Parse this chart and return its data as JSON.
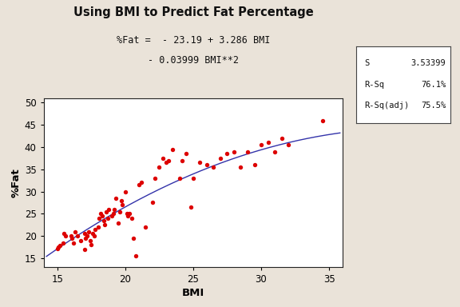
{
  "title": "Using BMI to Predict Fat Percentage",
  "subtitle1": "%Fat =  - 23.19 + 3.286 BMI",
  "subtitle2": "- 0.03999 BMI**2",
  "xlabel": "BMI",
  "ylabel": "%Fat",
  "xlim": [
    14,
    36
  ],
  "ylim": [
    13,
    51
  ],
  "xticks": [
    15,
    20,
    25,
    30,
    35
  ],
  "yticks": [
    15,
    20,
    25,
    30,
    35,
    40,
    45,
    50
  ],
  "bg_color": "#EAE3D9",
  "plot_bg_color": "#FFFFFF",
  "scatter_color": "#DD0000",
  "line_color": "#3333AA",
  "coef_a": -23.19,
  "coef_b": 3.286,
  "coef_c": -0.03999,
  "stat_s": "3.53399",
  "stat_rsq": "76.1%",
  "stat_rsqadj": "75.5%",
  "scatter_x": [
    15.0,
    15.1,
    15.2,
    15.4,
    15.5,
    15.6,
    16.0,
    16.1,
    16.2,
    16.3,
    16.5,
    16.7,
    17.0,
    17.0,
    17.1,
    17.2,
    17.3,
    17.4,
    17.5,
    17.6,
    17.7,
    17.8,
    18.0,
    18.1,
    18.2,
    18.3,
    18.4,
    18.5,
    18.6,
    18.7,
    18.8,
    19.0,
    19.1,
    19.2,
    19.3,
    19.5,
    19.6,
    19.7,
    19.8,
    20.0,
    20.1,
    20.2,
    20.3,
    20.5,
    20.6,
    20.8,
    21.0,
    21.2,
    21.5,
    22.0,
    22.2,
    22.5,
    22.8,
    23.0,
    23.2,
    23.5,
    24.0,
    24.2,
    24.5,
    24.8,
    25.0,
    25.5,
    26.0,
    26.5,
    27.0,
    27.5,
    28.0,
    28.5,
    29.0,
    29.5,
    30.0,
    30.5,
    31.0,
    31.5,
    32.0,
    34.5
  ],
  "scatter_y": [
    17.2,
    17.5,
    17.8,
    18.5,
    20.5,
    20.0,
    20.0,
    19.5,
    18.5,
    21.0,
    20.0,
    19.0,
    17.0,
    20.5,
    19.5,
    20.0,
    21.0,
    19.0,
    18.0,
    20.5,
    20.0,
    21.5,
    22.0,
    24.0,
    25.0,
    24.5,
    23.5,
    22.5,
    25.5,
    24.0,
    26.0,
    24.5,
    25.0,
    26.0,
    28.5,
    23.0,
    25.5,
    28.0,
    27.0,
    30.0,
    25.0,
    24.5,
    25.0,
    24.0,
    19.5,
    15.5,
    31.5,
    32.0,
    22.0,
    27.5,
    33.0,
    35.5,
    37.5,
    36.5,
    37.0,
    39.5,
    33.0,
    37.0,
    38.5,
    26.5,
    33.0,
    36.5,
    36.0,
    35.5,
    37.5,
    38.5,
    39.0,
    35.5,
    39.0,
    36.0,
    40.5,
    41.0,
    39.0,
    42.0,
    40.5,
    46.0
  ]
}
